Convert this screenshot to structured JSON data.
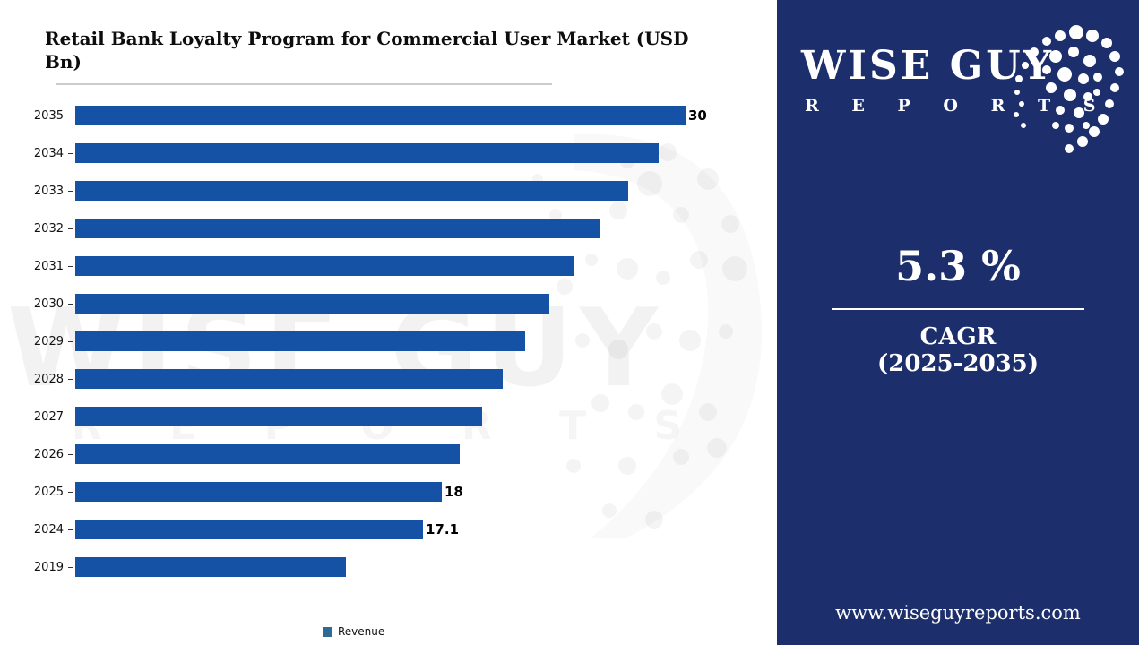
{
  "chart": {
    "bar_color": "#1552a5",
    "legend_color": "#2d6a96",
    "divider_color": "#cccccc"
  },
  "chart_data": {
    "type": "bar",
    "orientation": "horizontal",
    "title": "Retail Bank Loyalty Program for Commercial User Market (USD Bn)",
    "categories": [
      "2035",
      "2034",
      "2033",
      "2032",
      "2031",
      "2030",
      "2029",
      "2028",
      "2027",
      "2026",
      "2025",
      "2024",
      "2019"
    ],
    "values": [
      30,
      28.7,
      27.2,
      25.8,
      24.5,
      23.3,
      22.1,
      21,
      20,
      18.9,
      18,
      17.1,
      13.3
    ],
    "value_labels": {
      "2035": "30",
      "2025": "18",
      "2024": "17.1"
    },
    "xlabel": "",
    "ylabel": "",
    "xlim": [
      0,
      32
    ],
    "grid": false,
    "legend": [
      "Revenue"
    ],
    "legend_position": "bottom"
  },
  "panel": {
    "brand_line1": "WISE GUY",
    "brand_line2": "R E P O R T S",
    "cagr_value": "5.3 %",
    "cagr_label_line1": "CAGR",
    "cagr_label_line2": "(2025-2035)",
    "website": "www.wiseguyreports.com",
    "bg_color": "#1c2e6b"
  },
  "watermark": {
    "line1": "WISE GUY",
    "line2": "R E P O R T S"
  }
}
